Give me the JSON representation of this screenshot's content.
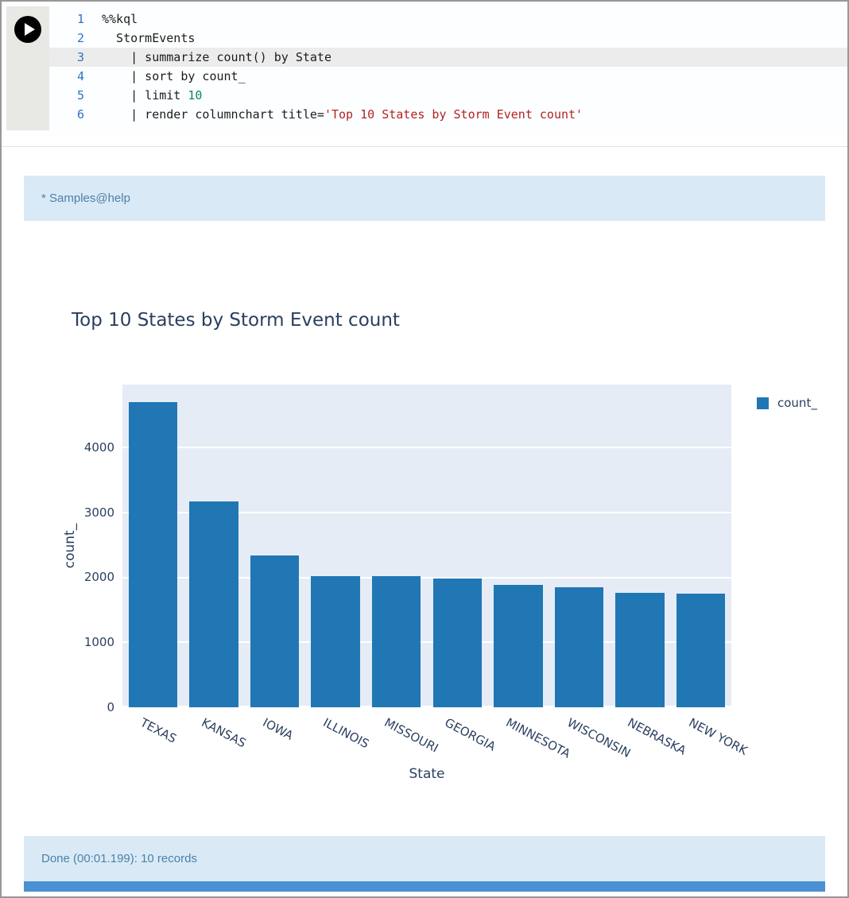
{
  "colors": {
    "bar": "#2077b4",
    "plot_background": "#e5ecf6",
    "message_background": "#d9eaf6",
    "message_text": "#4d80a8",
    "line_number": "#2b72c8",
    "string_token": "#b22222",
    "number_token": "#098658",
    "chart_text": "#2a3f5f",
    "bottom_strip": "#4a90d2"
  },
  "code": {
    "lines": [
      {
        "num": "1",
        "highlight": false,
        "segments": [
          [
            "plain",
            "%%kql"
          ]
        ]
      },
      {
        "num": "2",
        "highlight": false,
        "segments": [
          [
            "plain",
            "  StormEvents"
          ]
        ]
      },
      {
        "num": "3",
        "highlight": true,
        "segments": [
          [
            "plain",
            "    | summarize count() by State"
          ]
        ]
      },
      {
        "num": "4",
        "highlight": false,
        "segments": [
          [
            "plain",
            "    | sort by count_"
          ]
        ]
      },
      {
        "num": "5",
        "highlight": false,
        "segments": [
          [
            "plain",
            "    | limit "
          ],
          [
            "num",
            "10"
          ]
        ]
      },
      {
        "num": "6",
        "highlight": false,
        "segments": [
          [
            "plain",
            "    | render columnchart title="
          ],
          [
            "str",
            "'Top 10 States by Storm Event count'"
          ]
        ]
      }
    ]
  },
  "output": {
    "connection": "* Samples@help",
    "status": "Done (00:01.199): 10 records"
  },
  "chart_data": {
    "type": "bar",
    "title": "Top 10 States by Storm Event count",
    "xlabel": "State",
    "ylabel": "count_",
    "categories": [
      "TEXAS",
      "KANSAS",
      "IOWA",
      "ILLINOIS",
      "MISSOURI",
      "GEORGIA",
      "MINNESOTA",
      "WISCONSIN",
      "NEBRASKA",
      "NEW YORK"
    ],
    "series": [
      {
        "name": "count_",
        "values": [
          4701,
          3166,
          2337,
          2022,
          2016,
          1983,
          1881,
          1850,
          1766,
          1750
        ]
      }
    ],
    "yticks": [
      0,
      1000,
      2000,
      3000,
      4000
    ],
    "ylim": [
      0,
      4966
    ],
    "grid": true,
    "legend_position": "top-right",
    "label_rotation_deg": 28,
    "bar_color": "#2077b4",
    "plot_bg": "#e5ecf6"
  }
}
